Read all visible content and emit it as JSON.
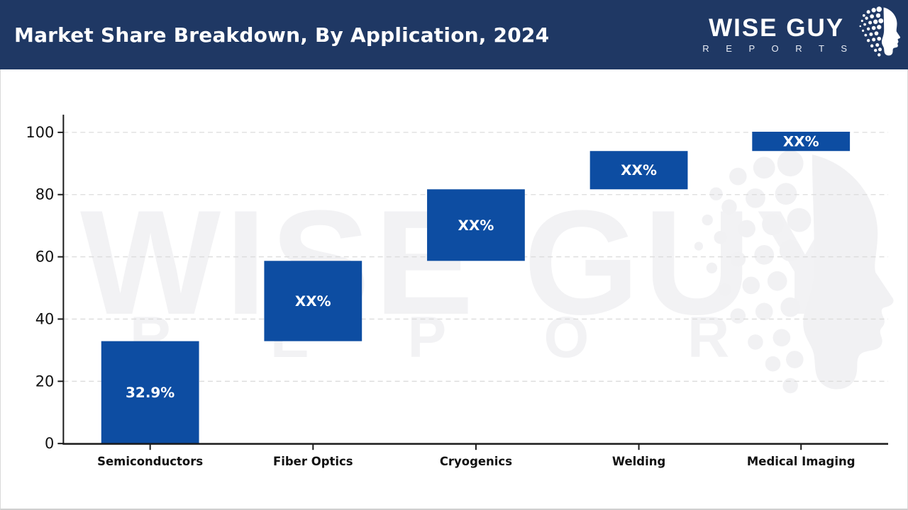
{
  "header": {
    "title": "Market Share Breakdown, By Application, 2024",
    "bg_color": "#1f3864",
    "logo": {
      "line1": "WISE GUY",
      "line2": "R E P O R T S"
    }
  },
  "watermark": {
    "line1": "WISE GUY",
    "line2": "R E P O R T S"
  },
  "chart_data": {
    "type": "bar",
    "subtype": "waterfall",
    "title": "Market Share Breakdown, By Application, 2024",
    "xlabel": "",
    "ylabel": "",
    "categories": [
      "Semiconductors",
      "Fiber Optics",
      "Cryogenics",
      "Welding",
      "Medical Imaging"
    ],
    "segments": [
      {
        "category": "Semiconductors",
        "start": 0,
        "end": 32.9,
        "label": "32.9%"
      },
      {
        "category": "Fiber Optics",
        "start": 32.9,
        "end": 58.7,
        "label": "XX%"
      },
      {
        "category": "Cryogenics",
        "start": 58.7,
        "end": 81.7,
        "label": "XX%"
      },
      {
        "category": "Welding",
        "start": 81.7,
        "end": 94.0,
        "label": "XX%"
      },
      {
        "category": "Medical Imaging",
        "start": 94.0,
        "end": 100.2,
        "label": "XX%"
      }
    ],
    "yticks": [
      0,
      20,
      40,
      60,
      80,
      100
    ],
    "ylim": [
      0,
      105
    ],
    "grid": "horizontal-dashed",
    "legend": "none",
    "colors": {
      "bar": "#0d4da2",
      "bar_label": "#ffffff",
      "axis": "#1a1a1a",
      "tick_label": "#111111",
      "gridline": "#dcdcdc"
    }
  }
}
